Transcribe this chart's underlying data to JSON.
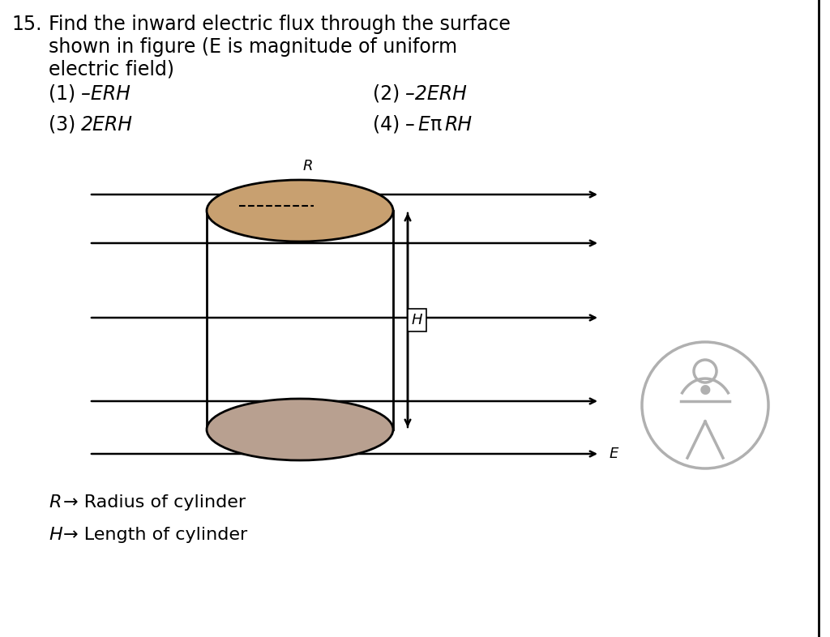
{
  "background_color": "#ffffff",
  "text_color": "#000000",
  "title_number": "15.",
  "title_lines": [
    "Find the inward electric flux through the surface",
    "shown in figure (E is magnitude of uniform",
    "electric field)"
  ],
  "opt1_num": "(1)",
  "opt1_val": "–ERH",
  "opt2_num": "(2)",
  "opt2_val": "–2ERH",
  "opt3_num": "(3)",
  "opt3_val": "2ERH",
  "opt4_num": "(4)",
  "opt4_val": "–EπRH",
  "note_R": "R → Radius of cylinder",
  "note_H": "H → Length of cylinder",
  "cylinder_color": "#000000",
  "top_ellipse_fill": "#c8a070",
  "bottom_ellipse_fill": "#b8a090",
  "arrow_color": "#000000",
  "watermark_color": "#b0b0b0",
  "font_size_title": 17,
  "font_size_options": 17,
  "font_size_notes": 16,
  "font_size_diagram": 13,
  "font_size_watermark": 22
}
